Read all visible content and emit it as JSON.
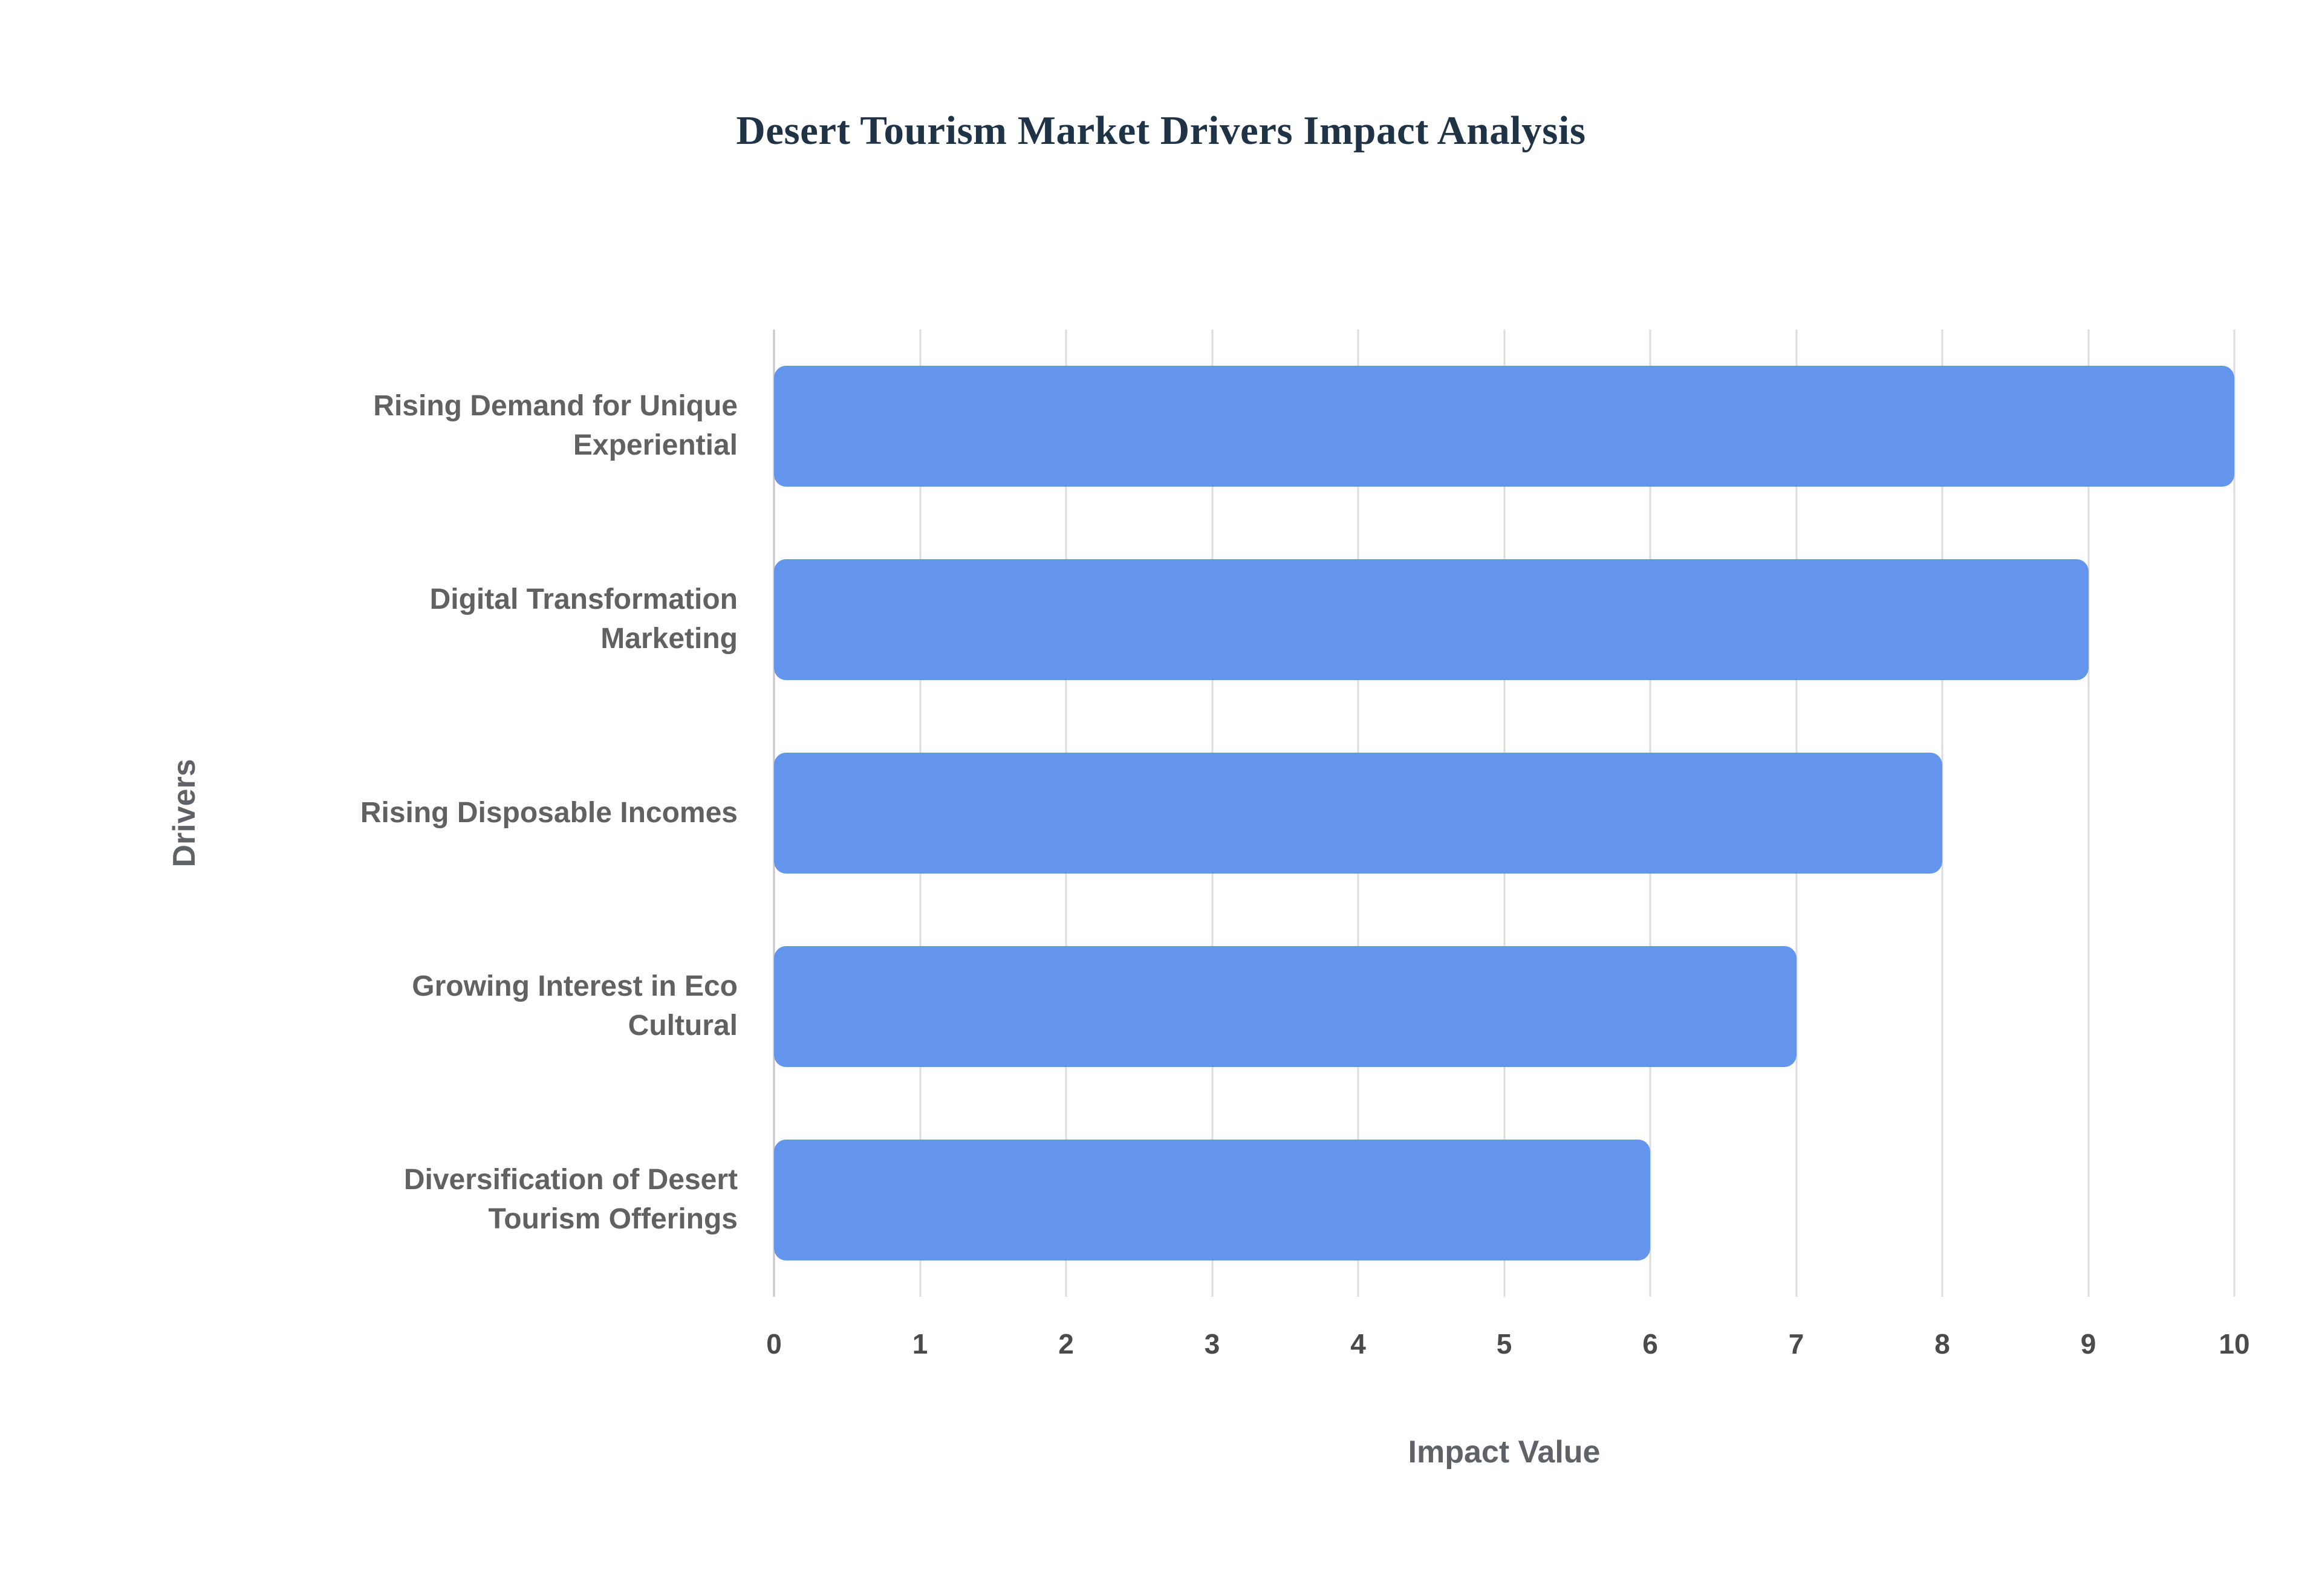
{
  "title": "Desert Tourism Market Drivers Impact Analysis",
  "chart_data": {
    "type": "bar",
    "orientation": "horizontal",
    "title": "Desert Tourism Market Drivers Impact Analysis",
    "xlabel": "Impact Value",
    "ylabel": "Drivers",
    "categories": [
      "Rising Demand for Unique Experiential",
      "Digital Transformation Marketing",
      "Rising Disposable Incomes",
      "Growing Interest in Eco Cultural",
      "Diversification of Desert Tourism Offerings"
    ],
    "category_lines": [
      [
        "Rising Demand for Unique",
        "Experiential"
      ],
      [
        "Digital Transformation",
        "Marketing"
      ],
      [
        "Rising Disposable Incomes"
      ],
      [
        "Growing Interest in Eco",
        "Cultural"
      ],
      [
        "Diversification of Desert",
        "Tourism Offerings"
      ]
    ],
    "values": [
      10,
      9,
      8,
      7,
      6
    ],
    "xlim": [
      0,
      10
    ],
    "x_ticks": [
      0,
      1,
      2,
      3,
      4,
      5,
      6,
      7,
      8,
      9,
      10
    ],
    "grid": true,
    "legend": "none",
    "bar_color": "#6495ED",
    "title_color": "#1F3347",
    "label_color": "#616161",
    "tick_color": "#4A4A4A",
    "grid_color": "#DCDCDC"
  }
}
